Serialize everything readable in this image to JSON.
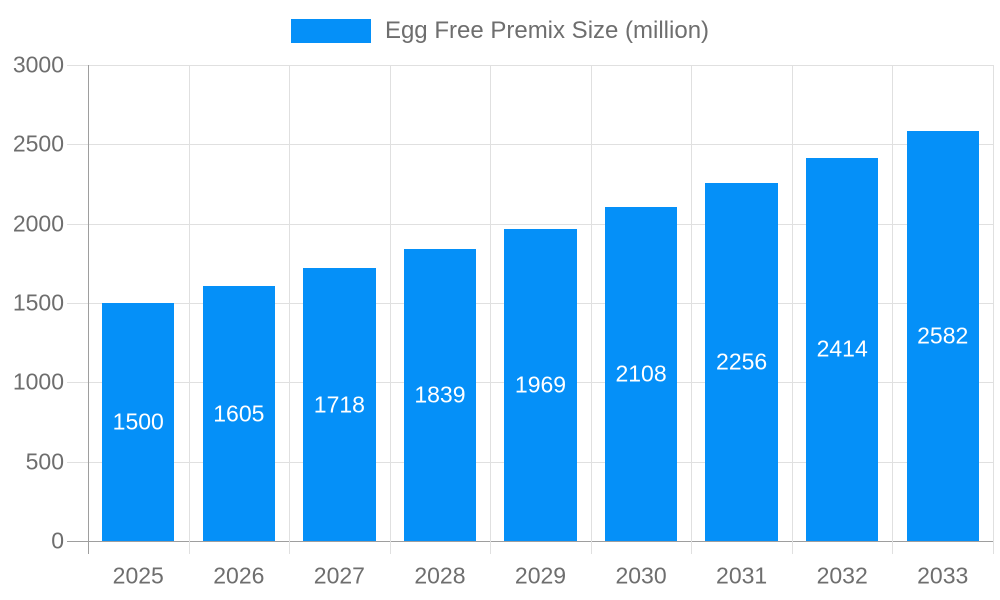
{
  "chart_data": {
    "type": "bar",
    "title": "Egg Free Premix Size (million)",
    "legend": [
      "Egg Free Premix Size (million)"
    ],
    "legend_position": "top",
    "categories": [
      "2025",
      "2026",
      "2027",
      "2028",
      "2029",
      "2030",
      "2031",
      "2032",
      "2033"
    ],
    "values": [
      1500,
      1605,
      1718,
      1839,
      1969,
      2108,
      2256,
      2414,
      2582
    ],
    "xlabel": "",
    "ylabel": "",
    "ylim": [
      0,
      3000
    ],
    "yticks": [
      0,
      500,
      1000,
      1500,
      2000,
      2500,
      3000
    ],
    "grid": true,
    "bar_labels_visible": true,
    "colors": {
      "bar": "#0590F8",
      "bar_label": "#FFFFFF",
      "grid": "#E0E0E0",
      "axis": "#9E9E9E",
      "tick_text": "#6E6E6E",
      "background": "#FFFFFF"
    }
  }
}
